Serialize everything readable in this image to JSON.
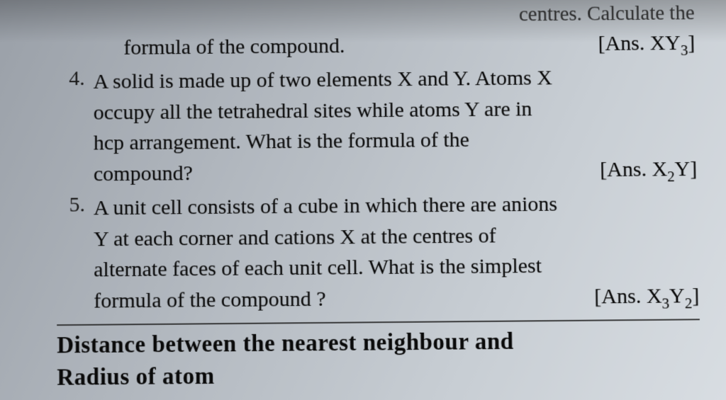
{
  "partial_top_right": "centres. Calculate the",
  "partial_line2_left": "formula of the compound.",
  "partial_ans_prev": "[Ans. XY",
  "partial_ans_prev_sub": "3",
  "partial_ans_prev_close": "]",
  "q4": {
    "num": "4.",
    "line1": "A solid is made up of two elements X and Y. Atoms X",
    "line2": "occupy all the tetrahedral sites while atoms Y are in",
    "line3": "hcp arrangement. What is the formula of the",
    "line4": "compound?",
    "ans_label": "[Ans.  X",
    "ans_sub": "2",
    "ans_after": "Y]"
  },
  "q5": {
    "num": "5.",
    "line1": "A unit cell consists of a cube in which there are anions",
    "line2": "Y at each corner and cations X at the centres of",
    "line3": "alternate faces of each unit cell. What is the simplest",
    "line4_left": "formula of the compound ?",
    "ans_label": "[Ans. X",
    "ans_sub1": "3",
    "ans_mid": "Y",
    "ans_sub2": "2",
    "ans_close": "]"
  },
  "heading_line1": "Distance between the nearest neighbour and",
  "heading_line2": "Radius of atom",
  "colors": {
    "text": "#0a0a0a",
    "bg_light": "#d8dde2",
    "bg_dark": "#9aa0a8",
    "rule": "#222222"
  },
  "fonts": {
    "body_family": "serif",
    "body_size_pt": 30,
    "heading_size_pt": 33,
    "heading_weight": "bold"
  }
}
